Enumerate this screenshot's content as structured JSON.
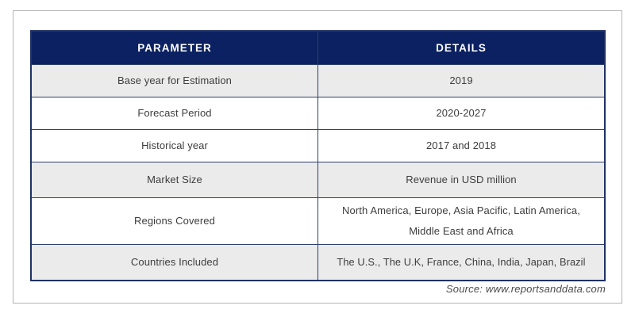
{
  "table": {
    "headers": [
      "PARAMETER",
      "DETAILS"
    ],
    "rows": [
      {
        "parameter": "Base year for Estimation",
        "details": "2019"
      },
      {
        "parameter": "Forecast Period",
        "details": "2020-2027"
      },
      {
        "parameter": "Historical year",
        "details": "2017 and 2018"
      },
      {
        "parameter": "Market Size",
        "details": "Revenue in USD million"
      },
      {
        "parameter": "Regions Covered",
        "details": "North America, Europe, Asia Pacific, Latin America, Middle East and Africa"
      },
      {
        "parameter": "Countries Included",
        "details": "The U.S., The  U.K, France, China, India, Japan, Brazil"
      }
    ]
  },
  "footer": {
    "source_note": "Source: www.reportsanddata.com"
  },
  "colors": {
    "header_bg": "#0b2161",
    "header_text": "#ffffff",
    "shaded_row_bg": "#ebebeb",
    "cell_border": "#2e3f6d",
    "frame_border": "#b5b5b5",
    "cell_text": "#3d3d3d"
  }
}
